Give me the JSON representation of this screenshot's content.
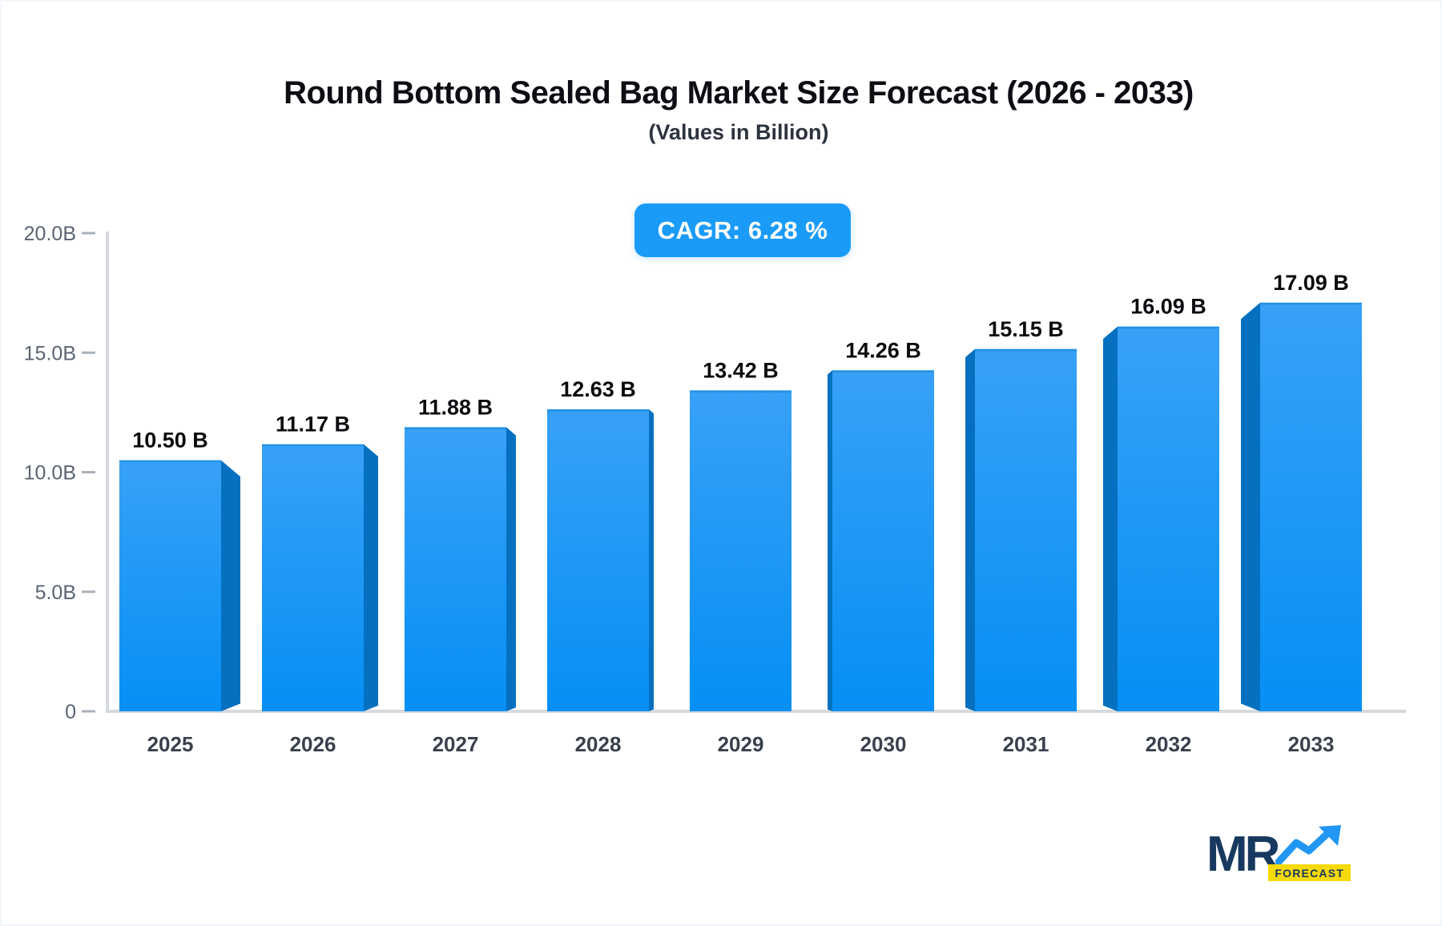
{
  "header": {
    "title": "Round Bottom Sealed Bag Market Size Forecast (2026 - 2033)",
    "subtitle": "(Values in Billion)",
    "cagr_badge": "CAGR: 6.28 %"
  },
  "chart_data": {
    "type": "bar",
    "title": "Round Bottom Sealed Bag Market Size Forecast (2026 - 2033)",
    "subtitle": "(Values in Billion)",
    "cagr": "6.28%",
    "categories": [
      "2025",
      "2026",
      "2027",
      "2028",
      "2029",
      "2030",
      "2031",
      "2032",
      "2033"
    ],
    "values": [
      10.5,
      11.17,
      11.88,
      12.63,
      13.42,
      14.26,
      15.15,
      16.09,
      17.09
    ],
    "value_labels": [
      "10.50 B",
      "11.17 B",
      "11.88 B",
      "12.63 B",
      "13.42 B",
      "14.26 B",
      "15.15 B",
      "16.09 B",
      "17.09 B"
    ],
    "y_ticks": [
      {
        "label": "20.0B",
        "value": 20
      },
      {
        "label": "15.0B",
        "value": 15
      },
      {
        "label": "10.0B",
        "value": 10
      },
      {
        "label": "5.0B",
        "value": 5
      },
      {
        "label": "0",
        "value": 0
      }
    ],
    "ylim": [
      0,
      20
    ],
    "xlabel": "",
    "ylabel": "",
    "grid": false,
    "legend": false,
    "colors": {
      "bar_gradient_top": "#38a1f6",
      "bar_gradient_bottom": "#058ff5",
      "bar_top_edge": "#1b8ce0",
      "bar_side_face": "#0570c0",
      "axis_line": "#d5d9de",
      "tick_dash": "#a9b0b8",
      "tick_label": "#5b6472",
      "year_label": "#3a414d",
      "value_label": "#0a0b0e",
      "badge_blue": "#1b9bf8"
    }
  },
  "logo": {
    "mr_text": "MR",
    "forecast_text": "FORECAST",
    "navy": "#17395f",
    "arrow_blue": "#2196f3",
    "yellow": "#f6d908"
  }
}
